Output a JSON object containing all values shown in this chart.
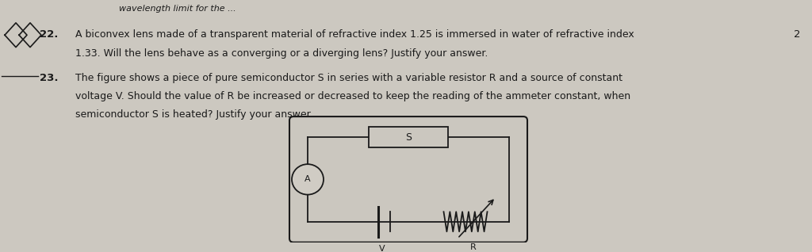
{
  "bg_color": "#ccc8c0",
  "text_color": "#1a1a1a",
  "top_text": "wavelength limit for the ...",
  "q22_num": "22.",
  "q22_line1": "A biconvex lens made of a transparent material of refractive index 1.25 is immersed in water of refractive index",
  "q22_line2": "1.33. Will the lens behave as a converging or a diverging lens? Justify your answer.",
  "q22_marks": "2",
  "q23_num": "23.",
  "q23_line1": "The figure shows a piece of pure semiconductor S in series with a variable resistor R and a source of constant",
  "q23_line2": "voltage V. Should the value of R be increased or decreased to keep the reading of the ammeter constant, when",
  "q23_line3": "semiconductor S is heated? Justify your answer",
  "circuit_label_S": "S",
  "circuit_label_A": "A",
  "circuit_label_V": "V",
  "circuit_label_R": "R",
  "figsize": [
    10.24,
    3.18
  ],
  "dpi": 100
}
